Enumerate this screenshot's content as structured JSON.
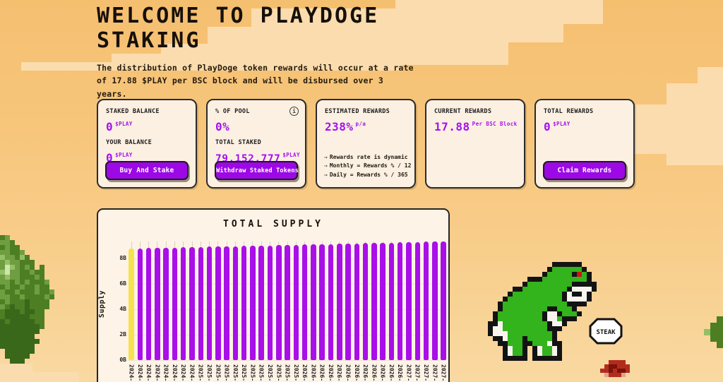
{
  "page": {
    "title_line1": "WELCOME TO PLAYDOGE",
    "title_line2": "STAKING",
    "subtitle": "The distribution of PlayDoge token rewards will occur at a rate of 17.88 $PLAY per BSC block and will be disbursed over 3 years."
  },
  "cards": {
    "staked": {
      "title": "STAKED BALANCE",
      "value": "0",
      "unit": "$PLAY",
      "subtitle": "YOUR BALANCE",
      "value2": "0",
      "unit2": "$PLAY",
      "button": "Buy And Stake"
    },
    "pool": {
      "title": "% OF POOL",
      "info_icon": "i",
      "value": "0%",
      "subtitle": "TOTAL STAKED",
      "value2": "79,152,777",
      "unit2": "$PLAY",
      "button": "Withdraw Staked Tokens"
    },
    "estimated": {
      "title": "ESTIMATED REWARDS",
      "value": "238%",
      "unit": "p/a",
      "note_arrow": "→",
      "notes": [
        "Rewards rate is dynamic",
        "Monthly = Rewards % / 12",
        "Daily = Rewards % / 365"
      ]
    },
    "current": {
      "title": "CURRENT REWARDS",
      "value": "17.88",
      "unit": "Per BSC Block"
    },
    "total": {
      "title": "TOTAL REWARDS",
      "value": "0",
      "unit": "$PLAY",
      "button": "Claim Rewards"
    }
  },
  "chart_data": {
    "type": "bar",
    "title": "TOTAL SUPPLY",
    "ylabel": "Supply",
    "unit": "B",
    "ylim": [
      0,
      9.6
    ],
    "y_ticks": [
      "0B",
      "2B",
      "4B",
      "6B",
      "8B"
    ],
    "y_tick_values": [
      0,
      2,
      4,
      6,
      8
    ],
    "grid": true,
    "x": [
      "2024-",
      "2024-",
      "2024-",
      "2024-",
      "2024-",
      "2024-",
      "2024-",
      "2024-",
      "2025-",
      "2025-",
      "2025-",
      "2025-",
      "2025-",
      "2025-",
      "2025-",
      "2025-",
      "2025-",
      "2025-",
      "2025-",
      "2025-",
      "2026-",
      "2026-",
      "2026-",
      "2026-",
      "2026-",
      "2026-",
      "2026-",
      "2026-",
      "2026-",
      "2026-",
      "2026-",
      "2026-",
      "2027-",
      "2027-",
      "2027-",
      "2027-",
      "2027-"
    ],
    "values": [
      8.78,
      8.79,
      8.81,
      8.82,
      8.84,
      8.86,
      8.87,
      8.89,
      8.9,
      8.92,
      8.93,
      8.95,
      8.96,
      8.98,
      9.0,
      9.01,
      9.03,
      9.04,
      9.06,
      9.07,
      9.09,
      9.1,
      9.12,
      9.13,
      9.15,
      9.17,
      9.18,
      9.2,
      9.21,
      9.23,
      9.24,
      9.26,
      9.27,
      9.29,
      9.31,
      9.32,
      9.34
    ],
    "bar_color_first": "#f4e24e",
    "bar_color_rest": "#a90fe8"
  },
  "decor": {
    "steak_sign": "STEAK"
  },
  "colors": {
    "accent_purple": "#a511f0",
    "button_purple": "#9c09e6",
    "bar_purple": "#a90fe8",
    "bar_yellow": "#f4e24e",
    "card_bg": "#fbf0e2",
    "chart_bg": "#fdf3e6",
    "cloud": "#fbdcae",
    "text_dark": "#1f160b"
  }
}
